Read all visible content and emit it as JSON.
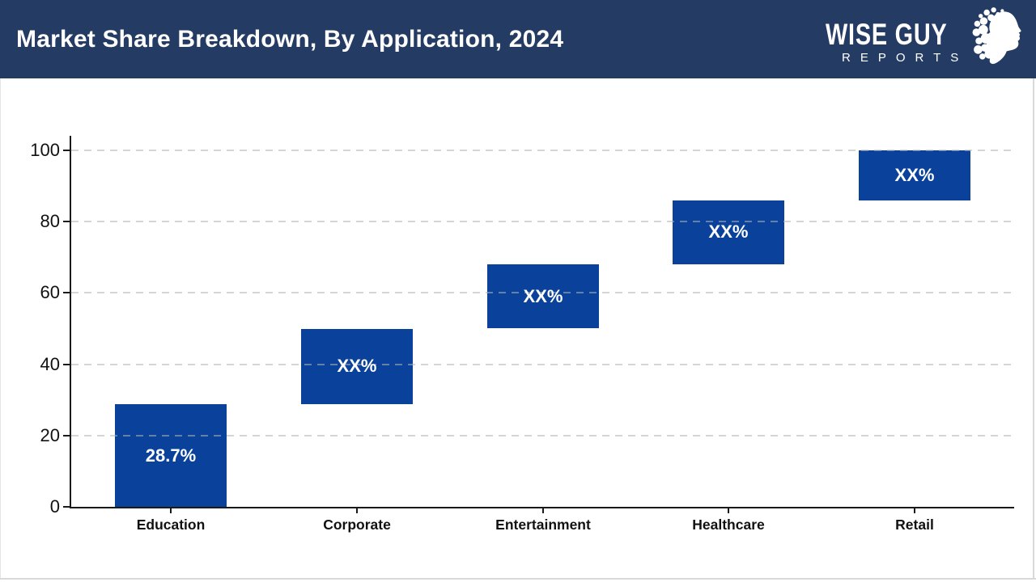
{
  "header": {
    "title": "Market Share Breakdown, By Application, 2024",
    "logo": {
      "name": "WISE GUY",
      "sub": "REPORTS",
      "head_icon": "dotted-face-profile"
    }
  },
  "watermark": {
    "line1": "WISE GUY",
    "line2": "REPORTS",
    "head_icon": "dotted-face-profile"
  },
  "colors": {
    "header_bg": "#243b64",
    "bar": "#0a429b",
    "bar_label": "#ffffff",
    "axis": "#1a1a1a",
    "gridline": "#d5d5d5",
    "watermark": "#f1f2f4",
    "card_border": "#d9d9d9"
  },
  "chart_data": {
    "type": "bar",
    "subtype": "waterfall",
    "title": "Market Share Breakdown, By Application, 2024",
    "categories": [
      "Education",
      "Corporate",
      "Entertainment",
      "Healthcare",
      "Retail"
    ],
    "segments": [
      {
        "category": "Education",
        "start": 0,
        "end": 28.7,
        "label": "28.7%"
      },
      {
        "category": "Corporate",
        "start": 28.7,
        "end": 50,
        "label": "XX%"
      },
      {
        "category": "Entertainment",
        "start": 50,
        "end": 68,
        "label": "XX%"
      },
      {
        "category": "Healthcare",
        "start": 68,
        "end": 86,
        "label": "XX%"
      },
      {
        "category": "Retail",
        "start": 86,
        "end": 100,
        "label": "XX%"
      }
    ],
    "xlabel": "",
    "ylabel": "",
    "ylim": [
      0,
      100
    ],
    "yticks": [
      0,
      20,
      40,
      60,
      80,
      100
    ],
    "grid": "horizontal-dashed",
    "legend": "none",
    "bar_color": "#0a429b"
  }
}
